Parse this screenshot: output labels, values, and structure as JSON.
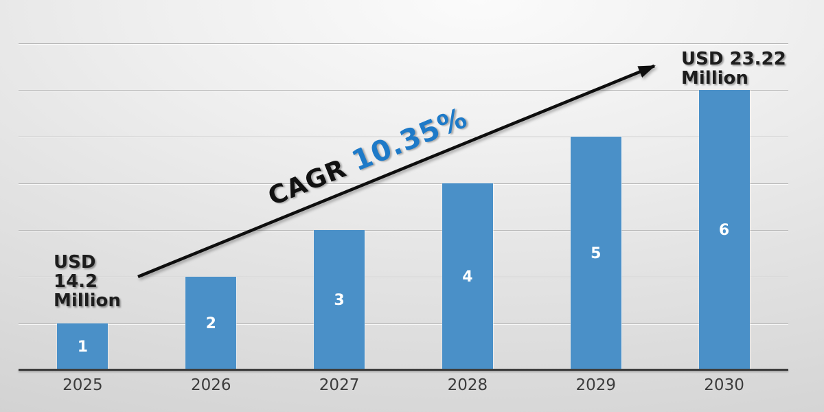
{
  "chart_data": {
    "type": "bar",
    "title": "",
    "xlabel": "",
    "ylabel": "",
    "categories": [
      "2025",
      "2026",
      "2027",
      "2028",
      "2029",
      "2030"
    ],
    "values": [
      1,
      2,
      3,
      4,
      5,
      6
    ],
    "bar_value_labels": [
      "1",
      "2",
      "3",
      "4",
      "5",
      "6"
    ],
    "ylim": [
      0,
      7
    ],
    "gridline_count": 7,
    "grid": "horizontal",
    "legend": "none",
    "annotations": {
      "start": {
        "lines": [
          "USD",
          "14.2",
          "Million"
        ],
        "text": "USD 14.2 Million",
        "attached_to_category": "2025"
      },
      "end": {
        "lines": [
          "USD 23.22",
          "Million"
        ],
        "text": "USD 23.22 Million",
        "attached_to_category": "2030"
      },
      "cagr": {
        "prefix": "CAGR",
        "value": "10.35%"
      }
    },
    "trend_arrow": {
      "from_category": "2025",
      "to_category": "2030",
      "direction": "up"
    }
  },
  "colors": {
    "bar_fill": "#4a90c8",
    "cagr_value_text": "#1e7ac8",
    "cagr_prefix_text": "#111111",
    "arrow": "#0e0e0e",
    "axis_line": "#3c3c3c",
    "gridline": "#b7b7b7",
    "year_label_text": "#3c3c3c",
    "bar_value_text": "#ffffff",
    "annotation_text": "#1d1d1d"
  }
}
